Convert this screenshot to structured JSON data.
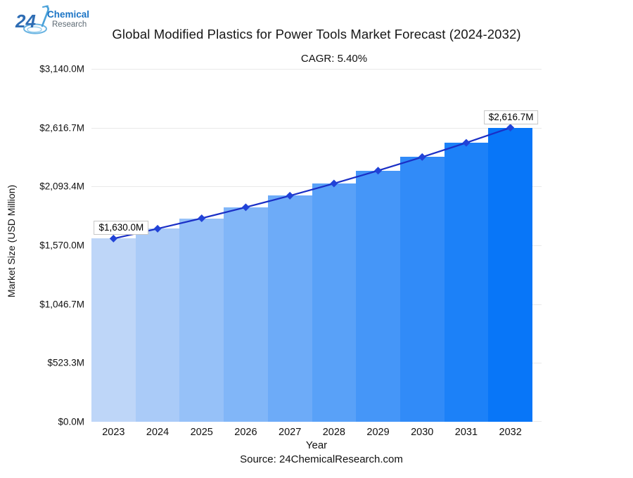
{
  "logo": {
    "number": "24",
    "line1": "Chemical",
    "line2": "Research",
    "number_color": "#2e6db4",
    "line1_color": "#1b74c5",
    "line2_color": "#5d6a74",
    "flask_color": "#4aa2d9"
  },
  "title": "Global Modified Plastics for Power Tools Market Forecast (2024-2032)",
  "subtitle": "CAGR: 5.40%",
  "source": "Source: 24ChemicalResearch.com",
  "chart_data": {
    "type": "bar+line",
    "title": "Global Modified Plastics for Power Tools Market Forecast (2024-2032)",
    "subtitle": "CAGR: 5.40%",
    "categories": [
      "2023",
      "2024",
      "2025",
      "2026",
      "2027",
      "2028",
      "2029",
      "2030",
      "2031",
      "2032"
    ],
    "values": [
      1630.0,
      1718.0,
      1810.8,
      1908.6,
      2011.6,
      2120.3,
      2234.8,
      2355.4,
      2482.6,
      2616.7
    ],
    "cagr_percent": 5.4,
    "xlabel": "Year",
    "ylabel": "Market Size (USD Million)",
    "ylim": [
      0,
      3140
    ],
    "yticks": [
      {
        "value": 0.0,
        "label": "$0.0M"
      },
      {
        "value": 523.3,
        "label": "$523.3M"
      },
      {
        "value": 1046.7,
        "label": "$1,046.7M"
      },
      {
        "value": 1570.0,
        "label": "$1,570.0M"
      },
      {
        "value": 2093.4,
        "label": "$2,093.4M"
      },
      {
        "value": 2616.7,
        "label": "$2,616.7M"
      },
      {
        "value": 3140.0,
        "label": "$3,140.0M"
      }
    ],
    "grid": "horizontal",
    "legend": "none",
    "bar_colors": [
      "#bed6f8",
      "#aacbf8",
      "#96c1f8",
      "#81b6f8",
      "#6dabf8",
      "#59a1f8",
      "#4596f8",
      "#318bf8",
      "#1c81f8",
      "#0876f8"
    ],
    "line_color": "#1a2fc6",
    "marker_color": "#2143d8",
    "gridline_color": "#e9e9e9",
    "annotations": [
      {
        "index": 0,
        "text": "$1,630.0M",
        "dx": 11
      },
      {
        "index": 9,
        "text": "$2,616.7M",
        "dx": 1
      }
    ]
  }
}
